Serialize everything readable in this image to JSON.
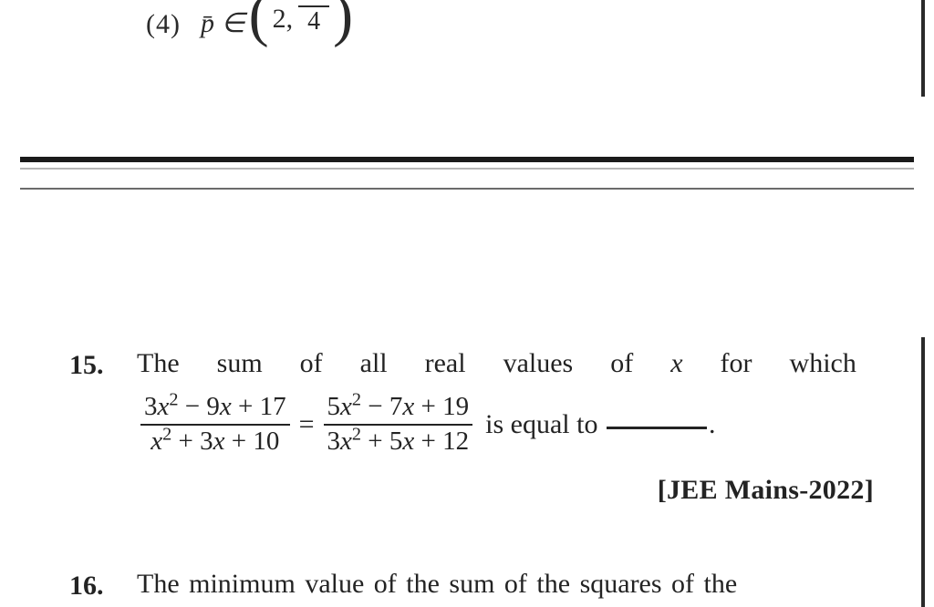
{
  "colors": {
    "text": "#232323",
    "rule_dark": "#1a1a1a",
    "rule_light": "#b5b5b5",
    "background": "#ffffff"
  },
  "typography": {
    "family": "Times New Roman",
    "body_size_pt": 22,
    "bold_weight": 700
  },
  "q14_partial": {
    "option_label": "(4)",
    "lhs": "p̄ ∈",
    "paren_left": "(",
    "paren_right": ")",
    "comma_val": "2,",
    "frac_den": "4"
  },
  "q15": {
    "number": "15.",
    "text_line1": "The sum of all real values of x for which",
    "frac1_num": "3x² − 9x + 17",
    "frac1_den": "x² + 3x + 10",
    "equals": "=",
    "frac2_num": "5x² − 7x + 19",
    "frac2_den": "3x² + 5x + 12",
    "tail_text": " is equal to",
    "tail_period": ".",
    "attribution": "[JEE Mains-2022]"
  },
  "q16": {
    "number": "16.",
    "text_line1": "The minimum value of the sum of the squares of the"
  }
}
